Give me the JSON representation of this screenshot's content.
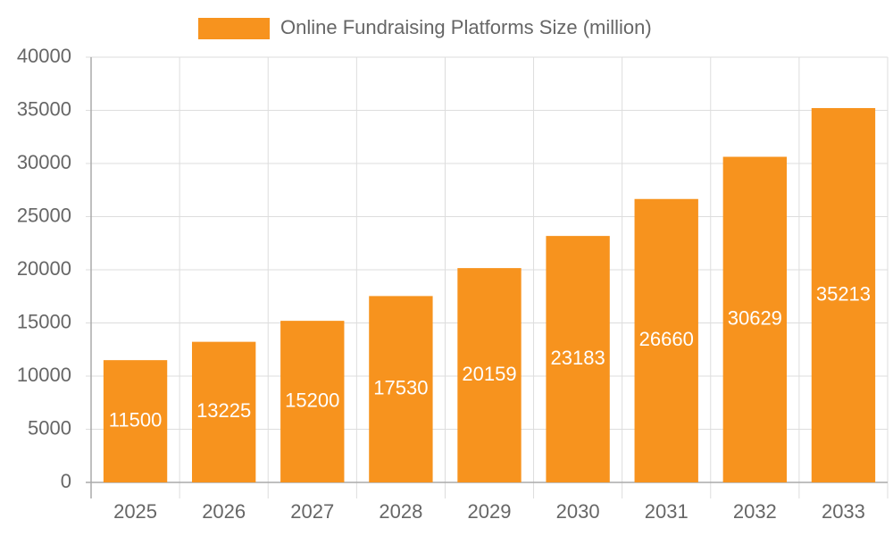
{
  "chart_data": {
    "type": "bar",
    "categories": [
      "2025",
      "2026",
      "2027",
      "2028",
      "2029",
      "2030",
      "2031",
      "2032",
      "2033"
    ],
    "series": [
      {
        "name": "Online Fundraising Platforms Size (million)",
        "color": "#f7931e",
        "values": [
          11500,
          13225,
          15200,
          17530,
          20159,
          23183,
          26660,
          30629,
          35213
        ]
      }
    ],
    "ylim": [
      0,
      40000
    ],
    "yticks": [
      0,
      5000,
      10000,
      15000,
      20000,
      25000,
      30000,
      35000,
      40000
    ],
    "grid": true,
    "legend": "top",
    "data_labels": true
  }
}
